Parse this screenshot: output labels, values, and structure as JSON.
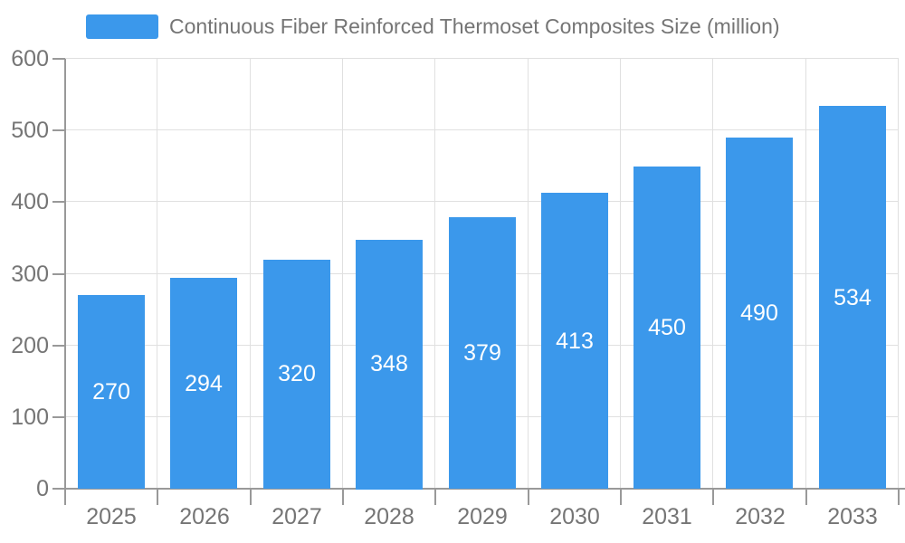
{
  "legend": {
    "label": "Continuous Fiber Reinforced Thermoset Composites Size (million)",
    "swatch_color": "#3B98EB"
  },
  "chart_data": {
    "type": "bar",
    "title": "",
    "categories": [
      "2025",
      "2026",
      "2027",
      "2028",
      "2029",
      "2030",
      "2031",
      "2032",
      "2033"
    ],
    "values": [
      270,
      294,
      320,
      348,
      379,
      413,
      450,
      490,
      534
    ],
    "series": [
      {
        "name": "Continuous Fiber Reinforced Thermoset Composites Size (million)",
        "values": [
          270,
          294,
          320,
          348,
          379,
          413,
          450,
          490,
          534
        ]
      }
    ],
    "xlabel": "",
    "ylabel": "",
    "ylim": [
      0,
      600
    ],
    "ytick_step": 100,
    "yticks": [
      "0",
      "100",
      "200",
      "300",
      "400",
      "500",
      "600"
    ],
    "grid": true,
    "legend_position": "top",
    "value_labels_position": "inside-center"
  },
  "colors": {
    "bar": "#3B98EB",
    "grid": "#E0E0E0",
    "axis": "#999999",
    "tick_text": "#757575",
    "value_text": "#FFFFFF",
    "background": "#FFFFFF"
  }
}
